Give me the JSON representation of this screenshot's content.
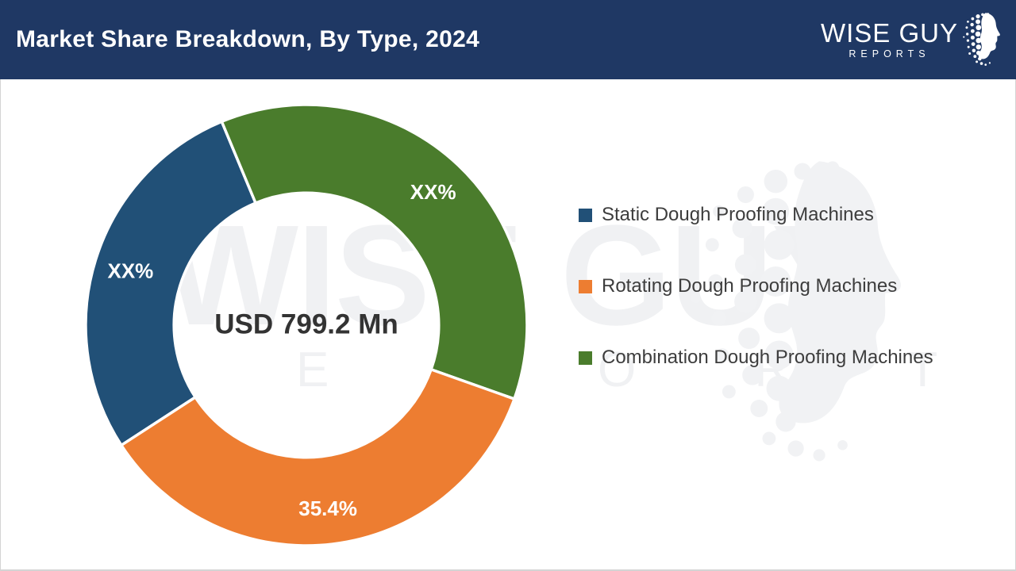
{
  "header": {
    "title": "Market Share Breakdown, By Type, 2024",
    "logo": {
      "line1": "WISE GUY",
      "line2": "REPORTS"
    }
  },
  "watermark": {
    "line1": "WISE GUY",
    "line2": "R E P O R T S"
  },
  "chart_data": {
    "type": "pie",
    "subtype": "donut",
    "title": "Market Share Breakdown, By Type, 2024",
    "center_label": "USD 799.2 Mn",
    "start_angle_deg_clock_from_top": 237,
    "direction": "clockwise",
    "draw_order": [
      0,
      2,
      1
    ],
    "inner_radius_ratio": 0.6,
    "legend_position": "right",
    "segments": [
      {
        "name": "Static Dough Proofing Machines",
        "slice_label": "XX%",
        "value_pct": 27.9,
        "value_is_estimate": true,
        "color": "#215077"
      },
      {
        "name": "Rotating Dough Proofing Machines",
        "slice_label": "35.4%",
        "value_pct": 35.4,
        "value_is_estimate": false,
        "color": "#ed7d31"
      },
      {
        "name": "Combination Dough Proofing Machines",
        "slice_label": "XX%",
        "value_pct": 36.7,
        "value_is_estimate": true,
        "color": "#4a7c2c"
      }
    ]
  },
  "colors": {
    "header_bg": "#1f3864",
    "content_bg": "#ffffff",
    "center_text": "#333333",
    "legend_text": "#3d3d3d",
    "watermark": "#f0f1f3",
    "border": "#d4d4d4"
  }
}
